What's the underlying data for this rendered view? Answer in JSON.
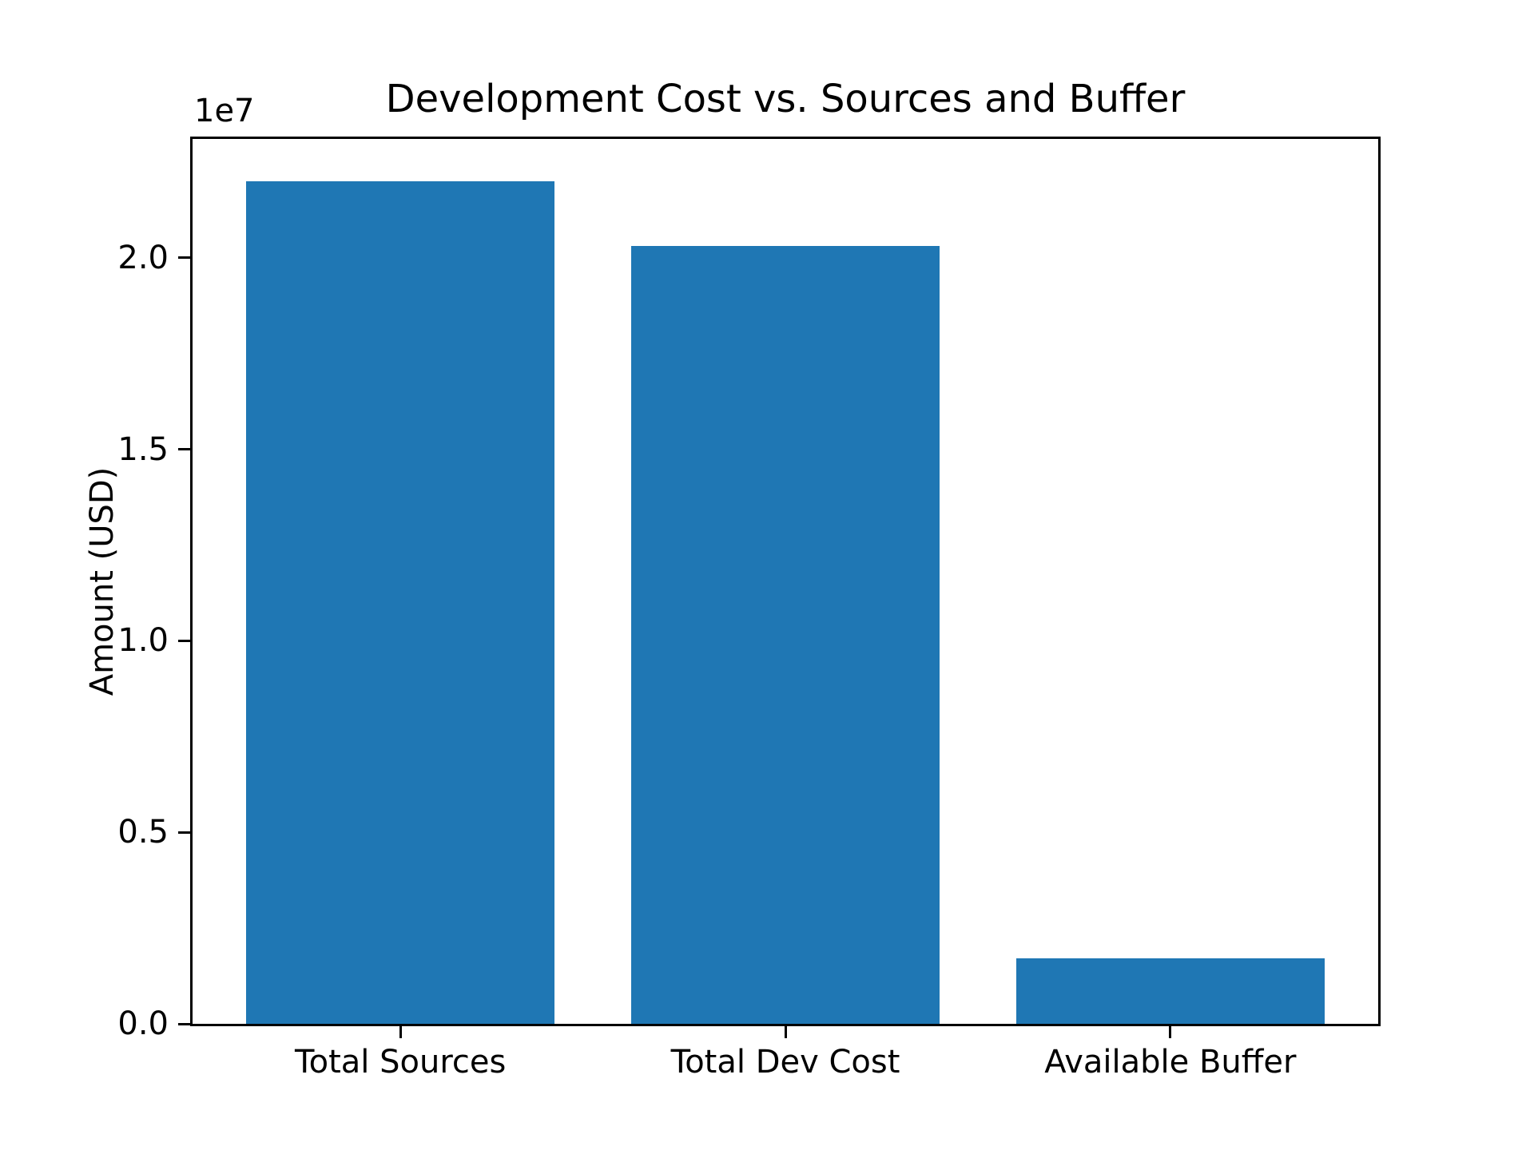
{
  "chart_data": {
    "type": "bar",
    "title": "Development Cost vs. Sources and Buffer",
    "ylabel": "Amount (USD)",
    "xlabel": "",
    "y_offset_label": "1e7",
    "categories": [
      "Total Sources",
      "Total Dev Cost",
      "Available Buffer"
    ],
    "values": [
      22000000,
      20300000,
      1700000
    ],
    "bar_color": "#1f77b4",
    "axis_color": "#000000",
    "background_color": "#ffffff",
    "ylim": [
      0,
      23100000
    ],
    "xlim": [
      -0.54,
      2.54
    ],
    "bar_width": 0.8,
    "yticks": [
      0,
      5000000,
      10000000,
      15000000,
      20000000
    ],
    "ytick_labels": [
      "0.0",
      "0.5",
      "1.0",
      "1.5",
      "2.0"
    ],
    "grid": false,
    "legend": null
  }
}
